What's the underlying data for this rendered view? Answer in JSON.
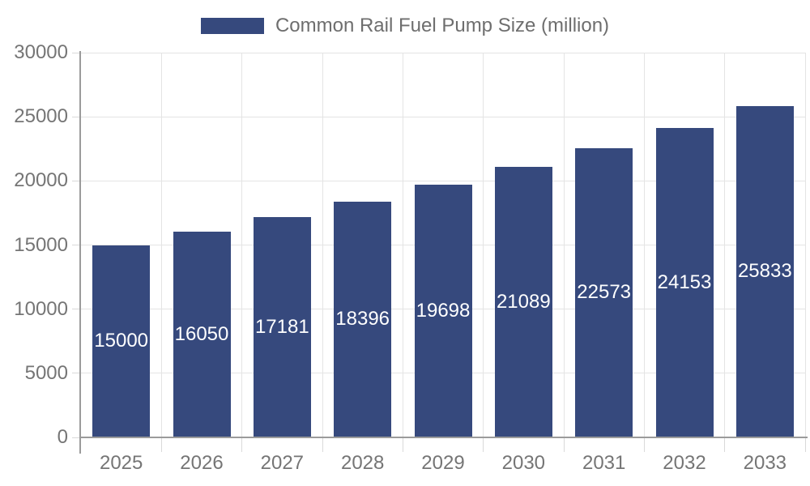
{
  "chart_data": {
    "type": "bar",
    "title": "Common Rail Fuel Pump Size (million)",
    "categories": [
      "2025",
      "2026",
      "2027",
      "2028",
      "2029",
      "2030",
      "2031",
      "2032",
      "2033"
    ],
    "series": [
      {
        "name": "Common Rail Fuel Pump Size (million)",
        "values": [
          15000,
          16050,
          17181,
          18396,
          19698,
          21089,
          22573,
          24153,
          25833
        ]
      }
    ],
    "xlabel": "",
    "ylabel": "",
    "ylim": [
      0,
      30000
    ],
    "yticks": [
      0,
      5000,
      10000,
      15000,
      20000,
      25000,
      30000
    ],
    "grid": true,
    "legend_position": "top-center",
    "bar_label_position": "inside-center"
  },
  "colors": {
    "bar": "#36497d",
    "bar_label": "#ffffff",
    "grid_line": "#e4e4e4",
    "tick_line": "#d9d9d9",
    "axis_line": "#9b9b9b",
    "axis_label": "#757575",
    "legend_text": "#6e6e6e",
    "background": "#ffffff"
  }
}
